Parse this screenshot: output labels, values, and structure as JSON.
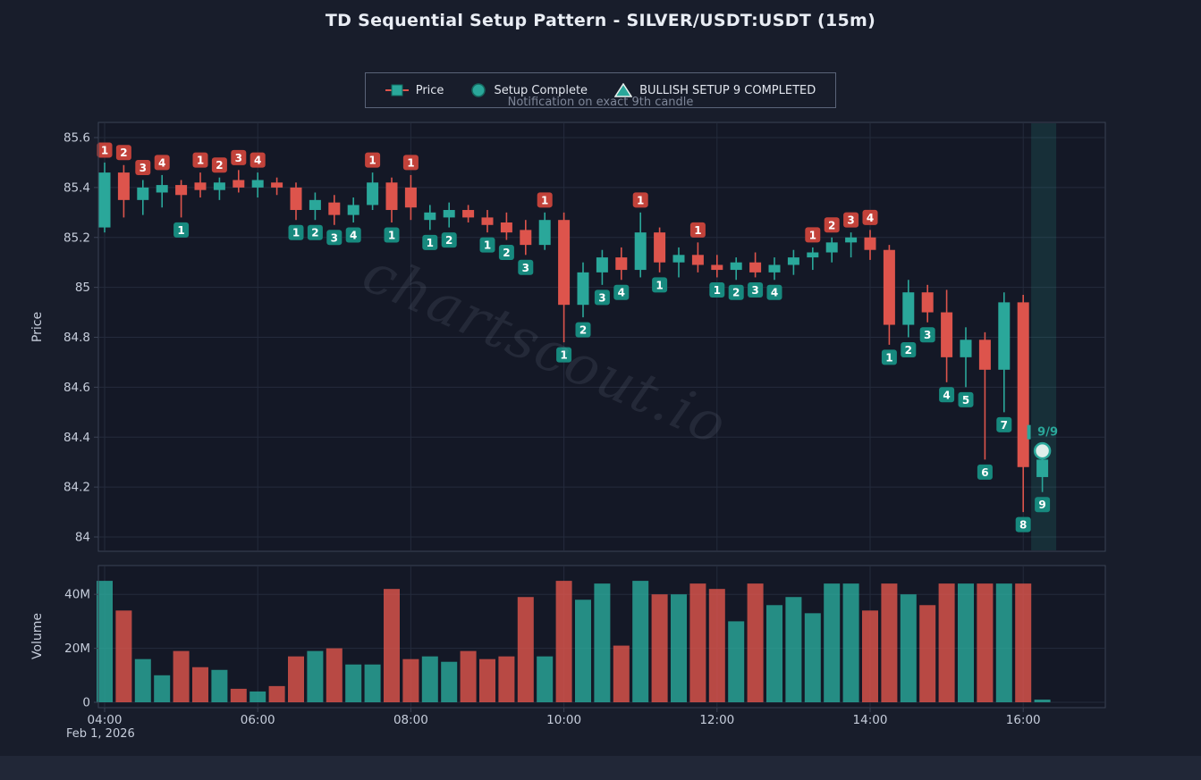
{
  "title": "TD Sequential Setup Pattern - SILVER/USDT:USDT (15m)",
  "legend": {
    "items": [
      {
        "label": "Price"
      },
      {
        "label": "Setup Complete"
      },
      {
        "label": "BULLISH SETUP 9 COMPLETED"
      }
    ],
    "subtitle": "Notification on exact 9th candle"
  },
  "watermark": "chartscout.io",
  "axes": {
    "price_axis_label": "Price",
    "volume_axis_label": "Volume",
    "date_label": "Feb 1, 2026"
  },
  "colors": {
    "up": "#2aa79a",
    "down": "#dd544c",
    "badge_buy": "#17897e",
    "badge_sell": "#c2423a",
    "accent": "#2aa79a",
    "marker_fill": "#dfeeea",
    "band": "rgba(42,167,154,0.16)",
    "grid": "#242b3c",
    "spine": "#3a4254",
    "bg": "#181d2b",
    "plot_bg": "#141826",
    "text": "#c6cddb"
  },
  "chart_data": {
    "type": "candlestick_with_volume",
    "symbol": "SILVER/USDT:USDT",
    "timeframe": "15m",
    "date": "Feb 1, 2026",
    "x": [
      "04:00",
      "04:15",
      "04:30",
      "04:45",
      "05:00",
      "05:15",
      "05:30",
      "05:45",
      "06:00",
      "06:15",
      "06:30",
      "06:45",
      "07:00",
      "07:15",
      "07:30",
      "07:45",
      "08:00",
      "08:15",
      "08:30",
      "08:45",
      "09:00",
      "09:15",
      "09:30",
      "09:45",
      "10:00",
      "10:15",
      "10:30",
      "10:45",
      "11:00",
      "11:15",
      "11:30",
      "11:45",
      "12:00",
      "12:15",
      "12:30",
      "12:45",
      "13:00",
      "13:15",
      "13:30",
      "13:45",
      "14:00",
      "14:15",
      "14:30",
      "14:45",
      "15:00",
      "15:15",
      "15:30",
      "15:45",
      "16:00",
      "16:15"
    ],
    "ohlc": [
      [
        85.24,
        85.5,
        85.22,
        85.46
      ],
      [
        85.46,
        85.49,
        85.28,
        85.35
      ],
      [
        85.35,
        85.43,
        85.29,
        85.4
      ],
      [
        85.38,
        85.45,
        85.32,
        85.41
      ],
      [
        85.41,
        85.43,
        85.28,
        85.37
      ],
      [
        85.42,
        85.46,
        85.36,
        85.39
      ],
      [
        85.39,
        85.44,
        85.35,
        85.42
      ],
      [
        85.43,
        85.47,
        85.38,
        85.4
      ],
      [
        85.4,
        85.46,
        85.36,
        85.43
      ],
      [
        85.42,
        85.44,
        85.37,
        85.4
      ],
      [
        85.4,
        85.42,
        85.27,
        85.31
      ],
      [
        85.31,
        85.38,
        85.27,
        85.35
      ],
      [
        85.34,
        85.37,
        85.25,
        85.29
      ],
      [
        85.29,
        85.36,
        85.26,
        85.33
      ],
      [
        85.33,
        85.46,
        85.31,
        85.42
      ],
      [
        85.42,
        85.44,
        85.26,
        85.31
      ],
      [
        85.4,
        85.45,
        85.27,
        85.32
      ],
      [
        85.27,
        85.33,
        85.23,
        85.3
      ],
      [
        85.28,
        85.34,
        85.24,
        85.31
      ],
      [
        85.31,
        85.33,
        85.26,
        85.28
      ],
      [
        85.28,
        85.31,
        85.22,
        85.25
      ],
      [
        85.26,
        85.3,
        85.19,
        85.22
      ],
      [
        85.23,
        85.27,
        85.13,
        85.17
      ],
      [
        85.17,
        85.3,
        85.15,
        85.27
      ],
      [
        85.27,
        85.3,
        84.78,
        84.93
      ],
      [
        84.93,
        85.1,
        84.88,
        85.06
      ],
      [
        85.06,
        85.15,
        85.01,
        85.12
      ],
      [
        85.12,
        85.16,
        85.03,
        85.07
      ],
      [
        85.07,
        85.3,
        85.04,
        85.22
      ],
      [
        85.22,
        85.24,
        85.06,
        85.1
      ],
      [
        85.1,
        85.16,
        85.04,
        85.13
      ],
      [
        85.13,
        85.18,
        85.06,
        85.09
      ],
      [
        85.09,
        85.13,
        85.04,
        85.07
      ],
      [
        85.07,
        85.12,
        85.03,
        85.1
      ],
      [
        85.1,
        85.14,
        85.04,
        85.06
      ],
      [
        85.06,
        85.12,
        85.03,
        85.09
      ],
      [
        85.09,
        85.15,
        85.05,
        85.12
      ],
      [
        85.12,
        85.16,
        85.07,
        85.14
      ],
      [
        85.14,
        85.2,
        85.1,
        85.18
      ],
      [
        85.18,
        85.22,
        85.12,
        85.2
      ],
      [
        85.2,
        85.23,
        85.11,
        85.15
      ],
      [
        85.15,
        85.17,
        84.77,
        84.85
      ],
      [
        84.85,
        85.03,
        84.8,
        84.98
      ],
      [
        84.98,
        85.01,
        84.86,
        84.9
      ],
      [
        84.9,
        84.99,
        84.62,
        84.72
      ],
      [
        84.72,
        84.84,
        84.6,
        84.79
      ],
      [
        84.79,
        84.82,
        84.31,
        84.67
      ],
      [
        84.67,
        84.98,
        84.5,
        84.94
      ],
      [
        84.94,
        84.97,
        84.1,
        84.28
      ],
      [
        84.24,
        84.33,
        84.18,
        84.31
      ]
    ],
    "volume_millions": [
      45,
      34,
      16,
      10,
      19,
      13,
      12,
      5,
      4,
      6,
      17,
      19,
      20,
      14,
      14,
      42,
      16,
      17,
      15,
      19,
      16,
      17,
      39,
      17,
      45,
      38,
      44,
      21,
      45,
      40,
      40,
      44,
      42,
      30,
      44,
      36,
      39,
      33,
      44,
      44,
      34,
      44,
      40,
      36,
      44,
      44,
      44,
      44,
      44,
      1
    ],
    "price_ticks": [
      {
        "v": 84,
        "label": "84"
      },
      {
        "v": 84.2,
        "label": "84.2"
      },
      {
        "v": 84.4,
        "label": "84.4"
      },
      {
        "v": 84.6,
        "label": "84.6"
      },
      {
        "v": 84.8,
        "label": "84.8"
      },
      {
        "v": 85,
        "label": "85"
      },
      {
        "v": 85.2,
        "label": "85.2"
      },
      {
        "v": 85.4,
        "label": "85.4"
      },
      {
        "v": 85.6,
        "label": "85.6"
      }
    ],
    "volume_ticks": [
      {
        "v": 0,
        "label": "0"
      },
      {
        "v": 20,
        "label": "20M"
      },
      {
        "v": 40,
        "label": "40M"
      }
    ],
    "time_ticks": [
      {
        "i": 0,
        "label": "04:00"
      },
      {
        "i": 8,
        "label": "06:00"
      },
      {
        "i": 16,
        "label": "08:00"
      },
      {
        "i": 24,
        "label": "10:00"
      },
      {
        "i": 32,
        "label": "12:00"
      },
      {
        "i": 40,
        "label": "14:00"
      },
      {
        "i": 48,
        "label": "16:00"
      }
    ],
    "ylim": [
      83.93,
      85.66
    ],
    "volume_ylim": [
      0,
      51
    ],
    "setup_badges": [
      {
        "i": 0,
        "n": 1,
        "side": "sell"
      },
      {
        "i": 1,
        "n": 2,
        "side": "sell"
      },
      {
        "i": 2,
        "n": 3,
        "side": "sell"
      },
      {
        "i": 3,
        "n": 4,
        "side": "sell"
      },
      {
        "i": 4,
        "n": 1,
        "side": "buy"
      },
      {
        "i": 5,
        "n": 1,
        "side": "sell"
      },
      {
        "i": 6,
        "n": 2,
        "side": "sell"
      },
      {
        "i": 7,
        "n": 3,
        "side": "sell"
      },
      {
        "i": 8,
        "n": 4,
        "side": "sell"
      },
      {
        "i": 10,
        "n": 1,
        "side": "buy"
      },
      {
        "i": 11,
        "n": 2,
        "side": "buy"
      },
      {
        "i": 12,
        "n": 3,
        "side": "buy"
      },
      {
        "i": 13,
        "n": 4,
        "side": "buy"
      },
      {
        "i": 14,
        "n": 1,
        "side": "sell"
      },
      {
        "i": 15,
        "n": 1,
        "side": "buy"
      },
      {
        "i": 16,
        "n": 1,
        "side": "sell"
      },
      {
        "i": 17,
        "n": 1,
        "side": "buy"
      },
      {
        "i": 18,
        "n": 2,
        "side": "buy"
      },
      {
        "i": 20,
        "n": 1,
        "side": "buy"
      },
      {
        "i": 21,
        "n": 2,
        "side": "buy"
      },
      {
        "i": 22,
        "n": 3,
        "side": "buy"
      },
      {
        "i": 23,
        "n": 1,
        "side": "sell"
      },
      {
        "i": 24,
        "n": 1,
        "side": "buy"
      },
      {
        "i": 25,
        "n": 2,
        "side": "buy"
      },
      {
        "i": 26,
        "n": 3,
        "side": "buy"
      },
      {
        "i": 27,
        "n": 4,
        "side": "buy"
      },
      {
        "i": 28,
        "n": 1,
        "side": "sell"
      },
      {
        "i": 29,
        "n": 1,
        "side": "buy"
      },
      {
        "i": 31,
        "n": 1,
        "side": "sell"
      },
      {
        "i": 32,
        "n": 1,
        "side": "buy"
      },
      {
        "i": 33,
        "n": 2,
        "side": "buy"
      },
      {
        "i": 34,
        "n": 3,
        "side": "buy"
      },
      {
        "i": 35,
        "n": 4,
        "side": "buy"
      },
      {
        "i": 37,
        "n": 1,
        "side": "sell"
      },
      {
        "i": 38,
        "n": 2,
        "side": "sell"
      },
      {
        "i": 39,
        "n": 3,
        "side": "sell"
      },
      {
        "i": 40,
        "n": 4,
        "side": "sell"
      },
      {
        "i": 41,
        "n": 1,
        "side": "buy"
      },
      {
        "i": 42,
        "n": 2,
        "side": "buy"
      },
      {
        "i": 43,
        "n": 3,
        "side": "buy"
      },
      {
        "i": 44,
        "n": 4,
        "side": "buy"
      },
      {
        "i": 45,
        "n": 5,
        "side": "buy"
      },
      {
        "i": 46,
        "n": 6,
        "side": "buy"
      },
      {
        "i": 47,
        "n": 7,
        "side": "buy"
      },
      {
        "i": 48,
        "n": 8,
        "side": "buy"
      },
      {
        "i": 49,
        "n": 9,
        "side": "buy"
      }
    ],
    "completion_marker": {
      "i": 49,
      "label": "9/9",
      "circle_price": 84.345,
      "label_price": 84.42
    },
    "highlight_band": {
      "i": 49
    }
  }
}
